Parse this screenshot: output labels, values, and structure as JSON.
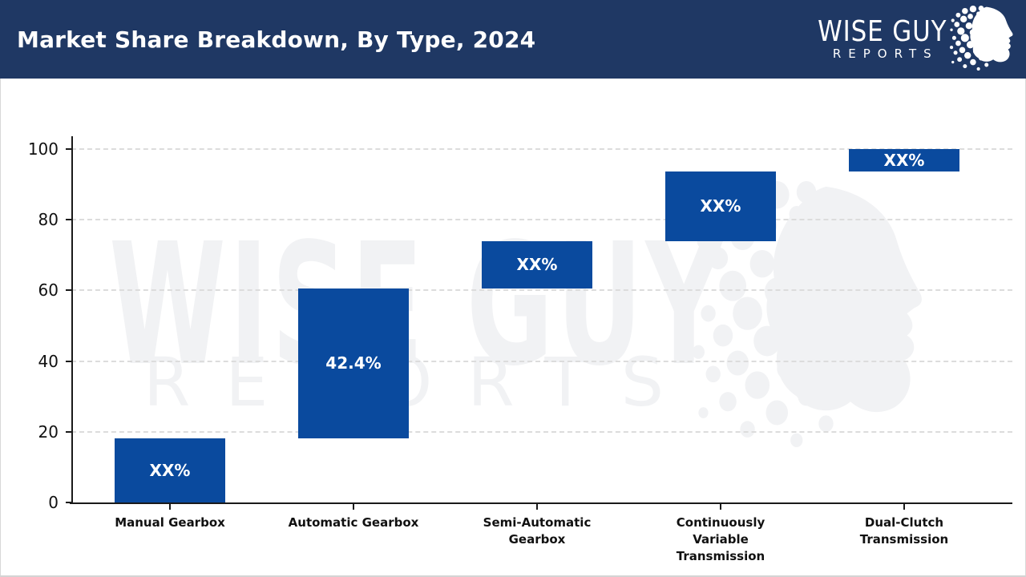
{
  "header": {
    "title": "Market Share Breakdown, By Type, 2024",
    "logo": {
      "brand_line1": "WISE GUY",
      "brand_line2": "REPORTS"
    }
  },
  "watermark": {
    "line1": "WISE GUY",
    "line2": "REPORTS"
  },
  "colors": {
    "header_bg": "#1f3864",
    "bar": "#0a4a9e",
    "bar_label": "#ffffff",
    "axis": "#1a1a1a",
    "grid": "#dcdcdc",
    "watermark": "#f1f2f4"
  },
  "chart_data": {
    "type": "bar",
    "variant": "waterfall",
    "title": "Market Share Breakdown, By Type, 2024",
    "categories": [
      "Manual Gearbox",
      "Automatic Gearbox",
      "Semi-Automatic\nGearbox",
      "Continuously\nVariable\nTransmission",
      "Dual-Clutch\nTransmission"
    ],
    "bars": [
      {
        "category": "Manual Gearbox",
        "start": 0,
        "end": 18.2,
        "value": 18.2,
        "label": "XX%"
      },
      {
        "category": "Automatic Gearbox",
        "start": 18.2,
        "end": 60.6,
        "value": 42.4,
        "label": "42.4%"
      },
      {
        "category": "Semi-Automatic Gearbox",
        "start": 60.6,
        "end": 74.0,
        "value": 13.4,
        "label": "XX%"
      },
      {
        "category": "Continuously Variable Transmission",
        "start": 74.0,
        "end": 93.6,
        "value": 19.6,
        "label": "XX%"
      },
      {
        "category": "Dual-Clutch Transmission",
        "start": 93.6,
        "end": 100.0,
        "value": 6.4,
        "label": "XX%"
      }
    ],
    "ylim": [
      0,
      100
    ],
    "yticks": [
      0,
      20,
      40,
      60,
      80,
      100
    ],
    "xlabel": "",
    "ylabel": "",
    "legend": "none",
    "grid": "horizontal-dashed"
  }
}
